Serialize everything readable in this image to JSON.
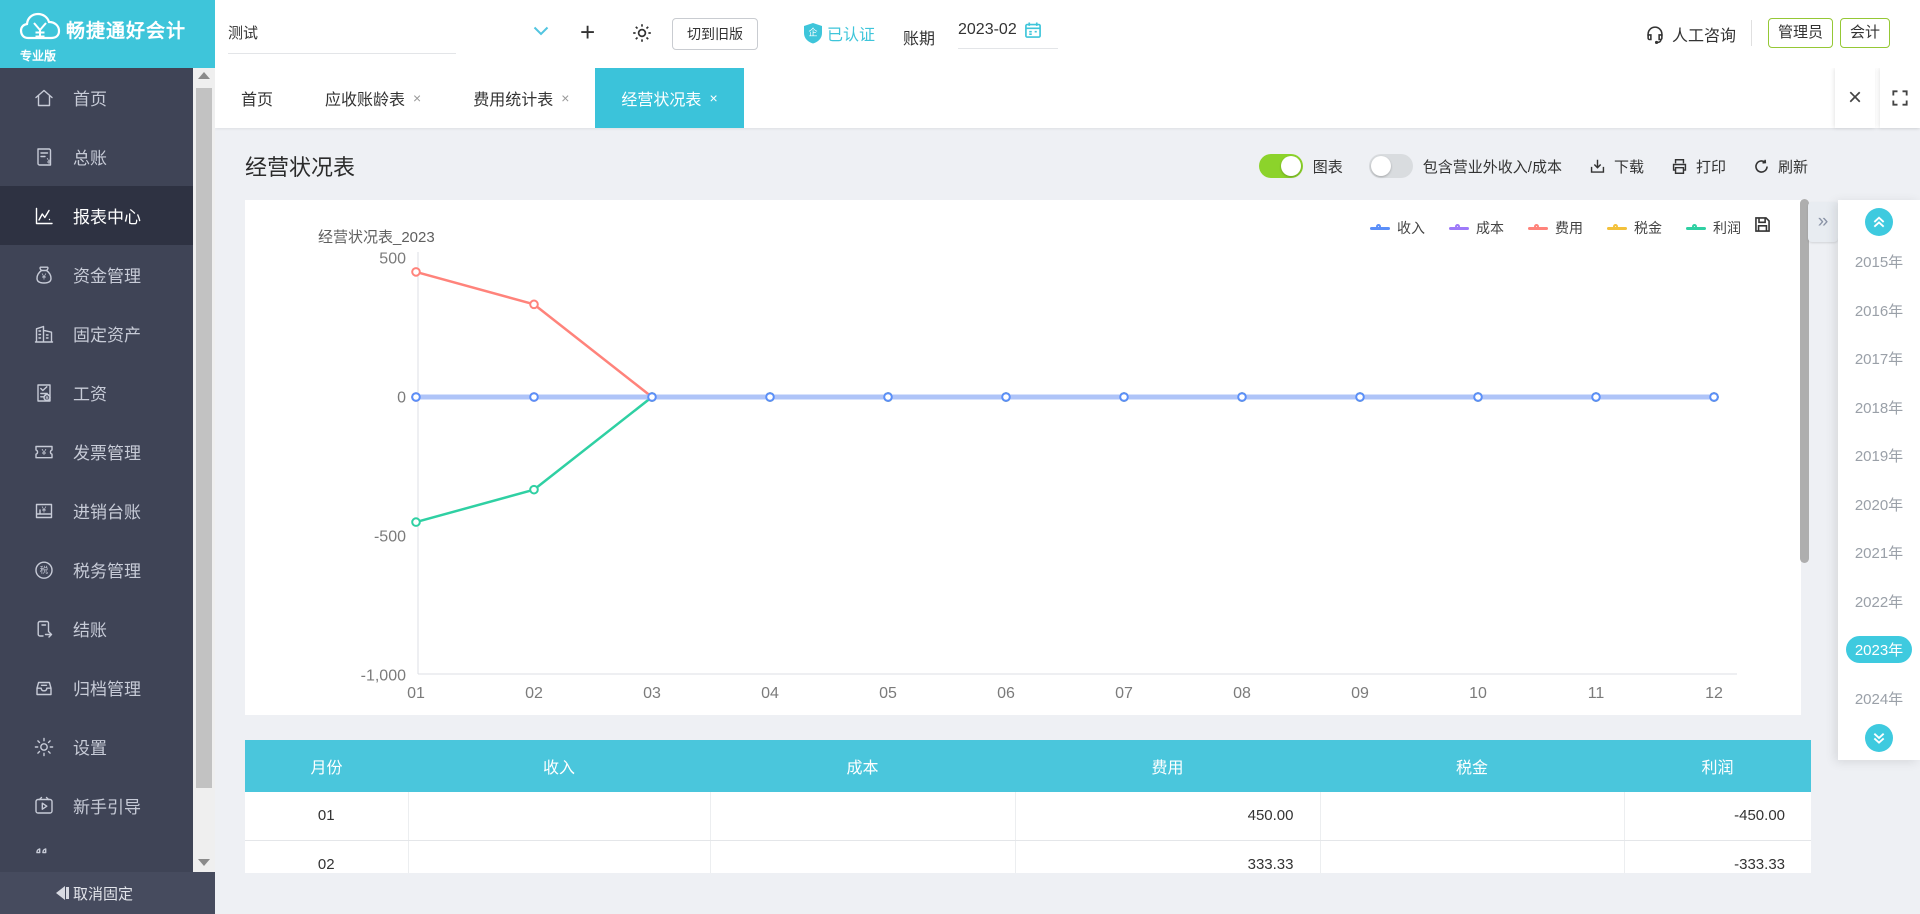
{
  "brand": {
    "name": "畅捷通好会计",
    "edition": "专业版"
  },
  "topbar": {
    "account": "测试",
    "add_label": "+",
    "switch_old": "切到旧版",
    "certified": "已认证",
    "certified_glyph": "企",
    "period_label": "账期",
    "period_value": "2023-02",
    "support": "人工咨询",
    "badge_admin": "管理员",
    "badge_accountant": "会计"
  },
  "sidebar": {
    "items": [
      {
        "icon": "home",
        "label": "首页",
        "active": false
      },
      {
        "icon": "ledger",
        "label": "总账",
        "active": false
      },
      {
        "icon": "report",
        "label": "报表中心",
        "active": true
      },
      {
        "icon": "funds",
        "label": "资金管理",
        "active": false
      },
      {
        "icon": "asset",
        "label": "固定资产",
        "active": false
      },
      {
        "icon": "salary",
        "label": "工资",
        "active": false
      },
      {
        "icon": "invoice",
        "label": "发票管理",
        "active": false
      },
      {
        "icon": "trade",
        "label": "进销台账",
        "active": false
      },
      {
        "icon": "tax",
        "label": "税务管理",
        "active": false
      },
      {
        "icon": "closing",
        "label": "结账",
        "active": false
      },
      {
        "icon": "archive",
        "label": "归档管理",
        "active": false
      },
      {
        "icon": "settings",
        "label": "设置",
        "active": false
      },
      {
        "icon": "guide",
        "label": "新手引导",
        "active": false
      },
      {
        "icon": "quote",
        "label": "",
        "active": false,
        "partial": true
      }
    ],
    "pin_label": "取消固定"
  },
  "tabs": [
    {
      "label": "首页",
      "closable": false,
      "active": false
    },
    {
      "label": "应收账龄表",
      "closable": true,
      "active": false
    },
    {
      "label": "费用统计表",
      "closable": true,
      "active": false
    },
    {
      "label": "经营状况表",
      "closable": true,
      "active": true
    }
  ],
  "page": {
    "title": "经营状况表",
    "toggle_chart_label": "图表",
    "toggle_chart_on": true,
    "toggle_include_label": "包含营业外收入/成本",
    "toggle_include_on": false,
    "download_label": "下载",
    "print_label": "打印",
    "refresh_label": "刷新"
  },
  "chart_data": {
    "type": "line",
    "title": "经营状况表_2023",
    "x": [
      "01",
      "02",
      "03",
      "04",
      "05",
      "06",
      "07",
      "08",
      "09",
      "10",
      "11",
      "12"
    ],
    "series": [
      {
        "name": "收入",
        "color": "#5B8FF9",
        "line_color": "#AFC4F8",
        "line_width": 5,
        "values": [
          0,
          0,
          0,
          0,
          0,
          0,
          0,
          0,
          0,
          0,
          0,
          0
        ]
      },
      {
        "name": "成本",
        "color": "#9E7AF9",
        "line_color": "#9E7AF9",
        "line_width": 2.5,
        "values": [
          0,
          0,
          0,
          0,
          0,
          0,
          0,
          0,
          0,
          0,
          0,
          0
        ]
      },
      {
        "name": "费用",
        "color": "#FF837B",
        "line_color": "#FF837B",
        "line_width": 2.5,
        "values": [
          450,
          333.33,
          0,
          0,
          0,
          0,
          0,
          0,
          0,
          0,
          0,
          0
        ]
      },
      {
        "name": "税金",
        "color": "#F3C13B",
        "line_color": "#F3C13B",
        "line_width": 2.5,
        "values": [
          0,
          0,
          0,
          0,
          0,
          0,
          0,
          0,
          0,
          0,
          0,
          0
        ]
      },
      {
        "name": "利润",
        "color": "#2FD0A3",
        "line_color": "#2FD0A3",
        "line_width": 2.5,
        "values": [
          -450,
          -333.33,
          0,
          0,
          0,
          0,
          0,
          0,
          0,
          0,
          0,
          0
        ]
      }
    ],
    "ylim": [
      -1000,
      500
    ],
    "yticks": [
      {
        "label": "500",
        "value": 500
      },
      {
        "label": "0",
        "value": 0
      },
      {
        "label": "-500",
        "value": -500
      },
      {
        "label": "-1,000",
        "value": -1000
      }
    ],
    "grid": false,
    "legend_position": "top-right"
  },
  "table": {
    "columns": [
      "月份",
      "收入",
      "成本",
      "费用",
      "税金",
      "利润"
    ],
    "rows": [
      [
        "01",
        "",
        "",
        "450.00",
        "",
        "-450.00"
      ],
      [
        "02",
        "",
        "",
        "333.33",
        "",
        "-333.33"
      ]
    ]
  },
  "year_panel": {
    "years": [
      "2015年",
      "2016年",
      "2017年",
      "2018年",
      "2019年",
      "2020年",
      "2021年",
      "2022年",
      "2023年",
      "2024年"
    ],
    "selected": "2023年"
  },
  "colors": {
    "brand_teal": "#3EC5DA",
    "tab_active": "#3BC3DA",
    "table_header": "#4AC6DC",
    "toggle_on": "#8CD32B",
    "badge_border": "#95C835",
    "sidebar_bg": "#3F4456",
    "sidebar_active_bg": "#2E3242"
  }
}
